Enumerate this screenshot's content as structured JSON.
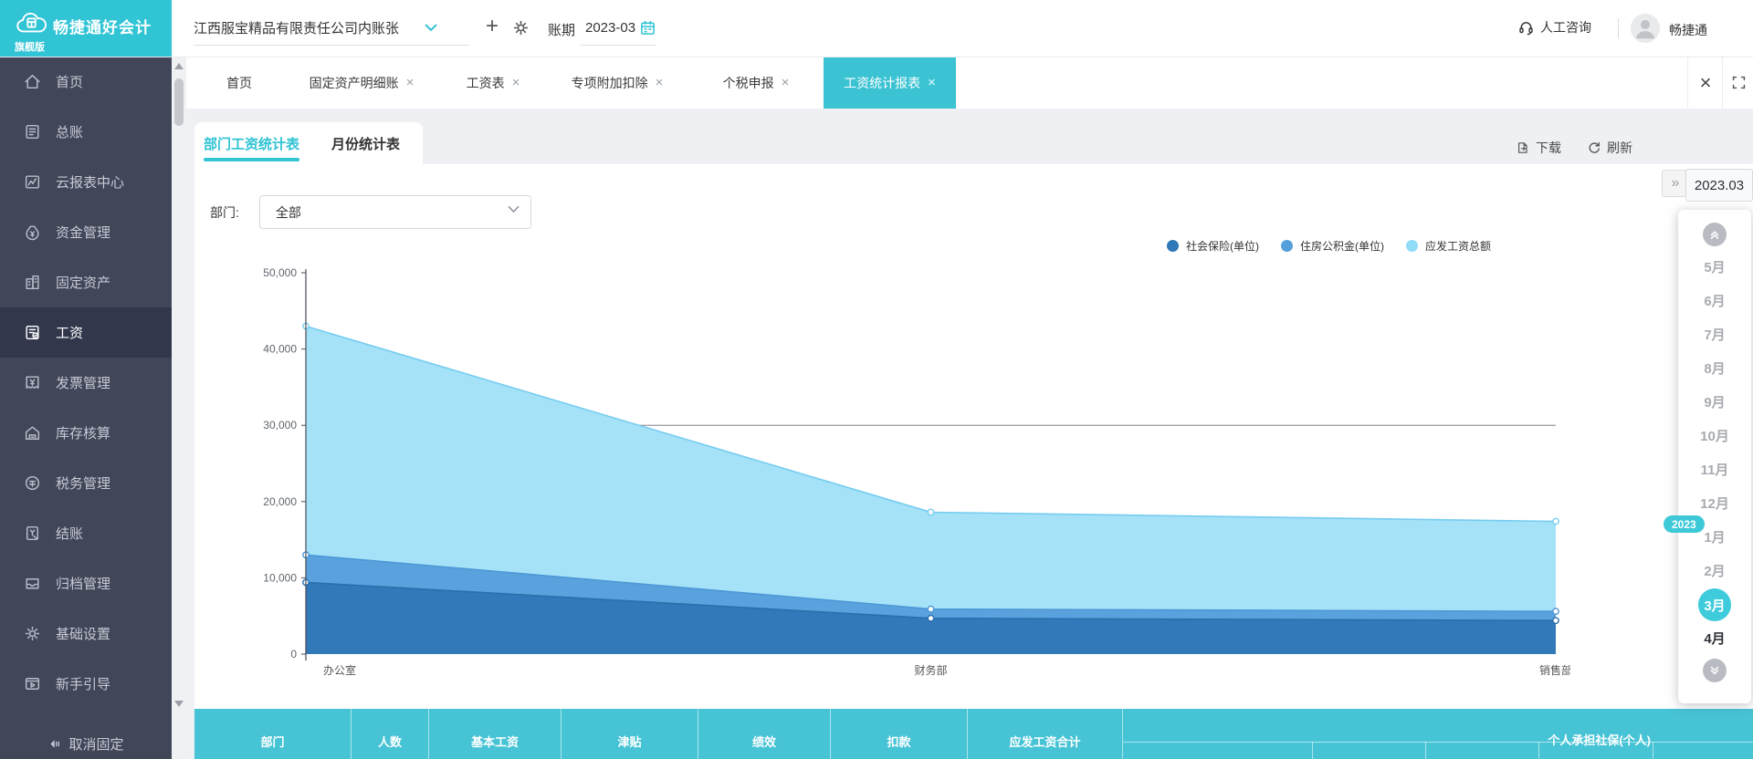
{
  "header": {
    "logo_title": "畅捷通好会计",
    "logo_subtitle": "旗舰版",
    "company": "江西服宝精品有限责任公司内账张",
    "period_label": "账期",
    "period_value": "2023-03",
    "consult_label": "人工咨询",
    "user_name": "畅捷通"
  },
  "sidebar": {
    "items": [
      {
        "label": "首页",
        "icon": "home",
        "active": false
      },
      {
        "label": "总账",
        "icon": "general-ledger",
        "active": false
      },
      {
        "label": "云报表中心",
        "icon": "cloud-reports",
        "active": false
      },
      {
        "label": "资金管理",
        "icon": "funds",
        "active": false
      },
      {
        "label": "固定资产",
        "icon": "fixed-assets",
        "active": false
      },
      {
        "label": "工资",
        "icon": "salary",
        "active": true
      },
      {
        "label": "发票管理",
        "icon": "invoice",
        "active": false
      },
      {
        "label": "库存核算",
        "icon": "inventory",
        "active": false
      },
      {
        "label": "税务管理",
        "icon": "tax",
        "active": false
      },
      {
        "label": "结账",
        "icon": "closing",
        "active": false
      },
      {
        "label": "归档管理",
        "icon": "archive",
        "active": false
      },
      {
        "label": "基础设置",
        "icon": "settings",
        "active": false
      },
      {
        "label": "新手引导",
        "icon": "guide",
        "active": false
      }
    ],
    "unpin_label": "取消固定"
  },
  "tabs": [
    {
      "label": "首页",
      "closable": false,
      "active": false
    },
    {
      "label": "固定资产明细账",
      "closable": true,
      "active": false
    },
    {
      "label": "工资表",
      "closable": true,
      "active": false
    },
    {
      "label": "专项附加扣除",
      "closable": true,
      "active": false
    },
    {
      "label": "个税申报",
      "closable": true,
      "active": false
    },
    {
      "label": "工资统计报表",
      "closable": true,
      "active": true
    }
  ],
  "subtabs": [
    {
      "label": "部门工资统计表",
      "active": true
    },
    {
      "label": "月份统计表",
      "active": false
    }
  ],
  "toolbar": {
    "download_label": "下载",
    "refresh_label": "刷新"
  },
  "filter": {
    "label": "部门:",
    "value": "全部"
  },
  "chart_data": {
    "type": "area",
    "categories": [
      "办公室",
      "财务部",
      "销售部"
    ],
    "series": [
      {
        "name": "社会保险(单位)",
        "values": [
          9400,
          4700,
          4400
        ],
        "dot": "#2e78b8",
        "fill": "#3279b9",
        "line": "#2a6fae"
      },
      {
        "name": "住房公积金(单位)",
        "values": [
          13000,
          5900,
          5600
        ],
        "dot": "#54a0dc",
        "fill": "#5aa2dd",
        "line": "#4c97d6"
      },
      {
        "name": "应发工资总额",
        "values": [
          43000,
          18600,
          17400
        ],
        "dot": "#8fdcf6",
        "fill": "#a5e2f8",
        "line": "#76ccf0"
      }
    ],
    "ylim": [
      0,
      50000
    ],
    "yticks": [
      0,
      10000,
      20000,
      30000,
      40000,
      50000
    ],
    "gridline_value": 30000,
    "legend_position": "top-right",
    "title": "",
    "xlabel": "",
    "ylabel": ""
  },
  "month_panel": {
    "current": "2023.03",
    "year_badge": "2023",
    "months_upper": [
      "5月",
      "6月",
      "7月",
      "8月",
      "9月",
      "10月",
      "11月",
      "12月"
    ],
    "months_lower": [
      {
        "label": "1月",
        "state": "muted"
      },
      {
        "label": "2月",
        "state": "muted"
      },
      {
        "label": "3月",
        "state": "selected"
      },
      {
        "label": "4月",
        "state": "dark"
      }
    ]
  },
  "table": {
    "columns": [
      "部门",
      "人数",
      "基本工资",
      "津贴",
      "绩效",
      "扣款",
      "应发工资合计"
    ],
    "group_header": "个人承担社保(个人)"
  },
  "colors": {
    "brand_teal": "#31c4d5",
    "active_tab": "#3cc3d3",
    "table_header": "#46c3d5",
    "sidebar_bg": "#414659",
    "sidebar_active_bg": "#32374b"
  }
}
